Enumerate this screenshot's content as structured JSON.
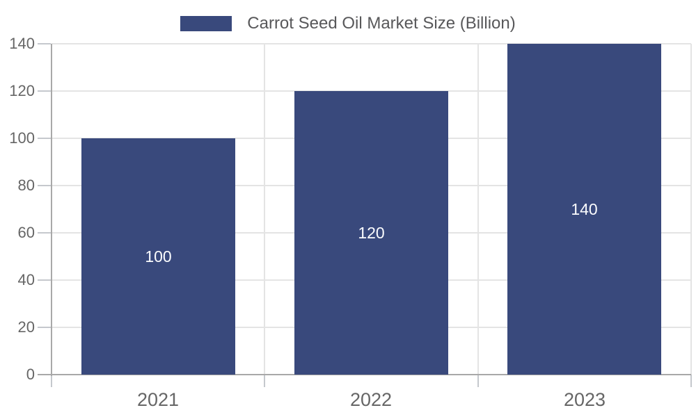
{
  "chart_data": {
    "type": "bar",
    "title": "Carrot Seed Oil Market Size (Billion)",
    "categories": [
      "2021",
      "2022",
      "2023"
    ],
    "values": [
      100,
      120,
      140
    ],
    "data_labels": [
      "100",
      "120",
      "140"
    ],
    "ytick_labels": [
      "0",
      "20",
      "40",
      "60",
      "80",
      "100",
      "120",
      "140"
    ],
    "yticks": [
      0,
      20,
      40,
      60,
      80,
      100,
      120,
      140
    ],
    "ylim": [
      0,
      140
    ],
    "grid": true,
    "legend_position": "top-center",
    "colors": {
      "bar": "#39497C",
      "grid": "#e4e4e4",
      "axis": "#a8a8a8",
      "tick": "#c5c8cd",
      "tick_label": "#666666",
      "legend_text": "#58585a",
      "data_label": "#fbfcfe"
    }
  }
}
